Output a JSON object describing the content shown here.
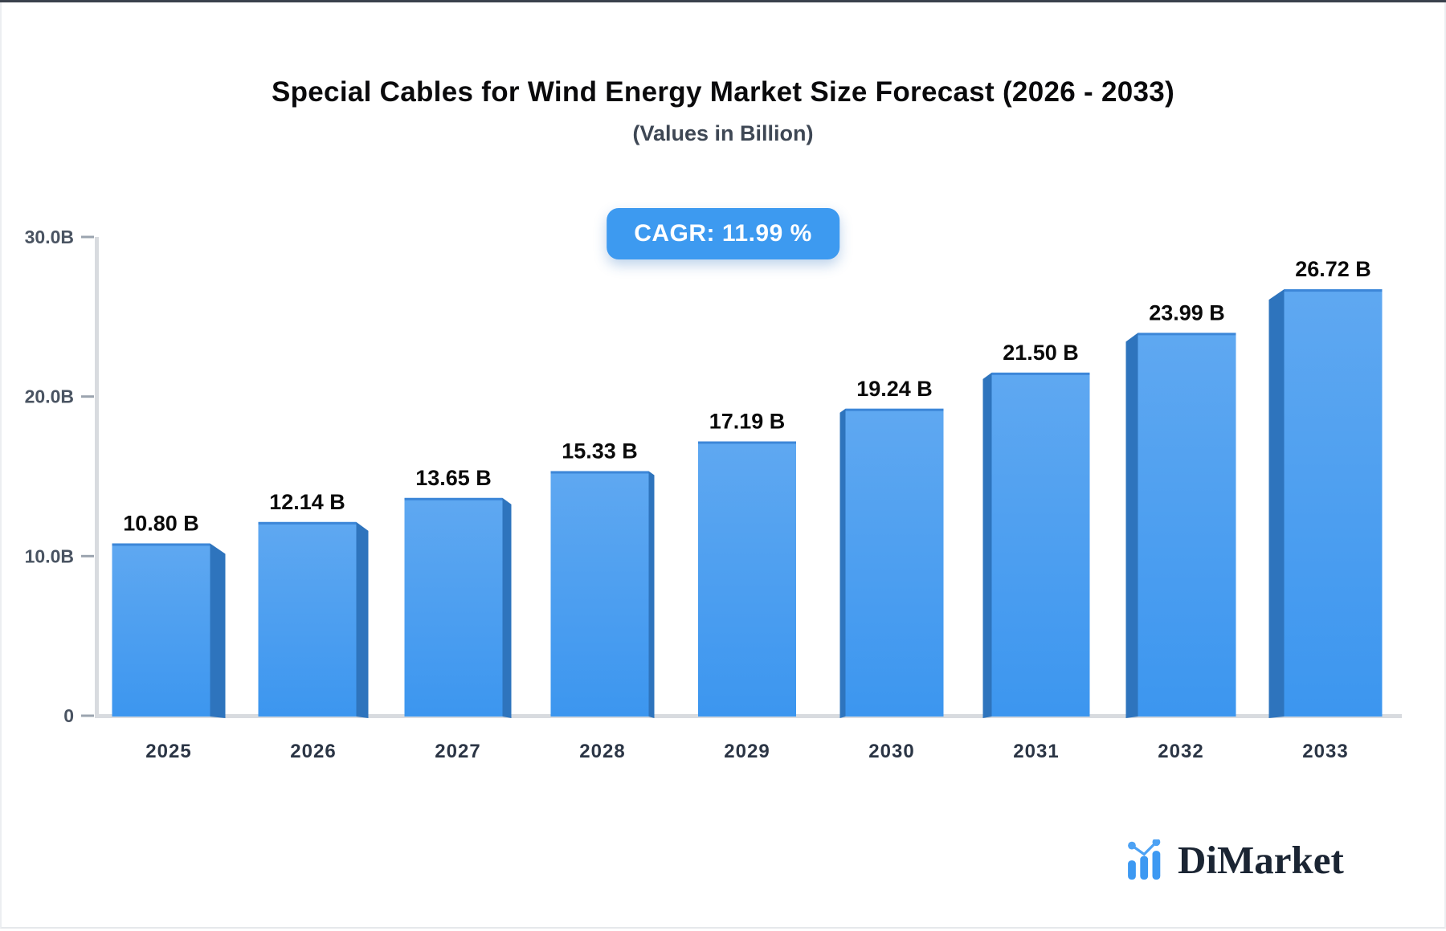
{
  "page": {
    "brand": {
      "name": "DiMarket",
      "icon": "bar-line-chart-icon"
    }
  },
  "colors": {
    "accent_blue": "#3d9af0",
    "bar_face_top": "#5fa8f1",
    "bar_face_bottom": "#3c96ef",
    "bar_side": "#2e74bd",
    "bar_top_edge": "#3d87d8",
    "axis_line": "#d8dbdf",
    "tick_mark": "#9ba4af",
    "y_label_text": "#4a5462",
    "x_label_text": "#2b3545",
    "value_label_text": "#0a0a0a",
    "brand_navy": "#1b2533",
    "brand_blue": "#3d99f2"
  },
  "chart_data": {
    "type": "bar",
    "title": "Special Cables for Wind Energy Market Size Forecast (2026 - 2033)",
    "subtitle": "(Values in Billion)",
    "cagr_label": "CAGR: 11.99 %",
    "categories": [
      "2025",
      "2026",
      "2027",
      "2028",
      "2029",
      "2030",
      "2031",
      "2032",
      "2033"
    ],
    "values": [
      10.8,
      12.14,
      13.65,
      15.33,
      17.19,
      19.24,
      21.5,
      23.99,
      26.72
    ],
    "value_labels": [
      "10.80 B",
      "12.14 B",
      "13.65 B",
      "15.33 B",
      "17.19 B",
      "19.24 B",
      "21.50 B",
      "23.99 B",
      "26.72 B"
    ],
    "xlabel": "",
    "ylabel": "",
    "ylim": [
      0,
      30
    ],
    "y_ticks": [
      {
        "value": 0,
        "label": "0"
      },
      {
        "value": 10,
        "label": "10.0B"
      },
      {
        "value": 20,
        "label": "20.0B"
      },
      {
        "value": 30,
        "label": "30.0B"
      }
    ],
    "grid": false,
    "legend": false,
    "bar_style": "3d-perspective-center-vanishing"
  }
}
